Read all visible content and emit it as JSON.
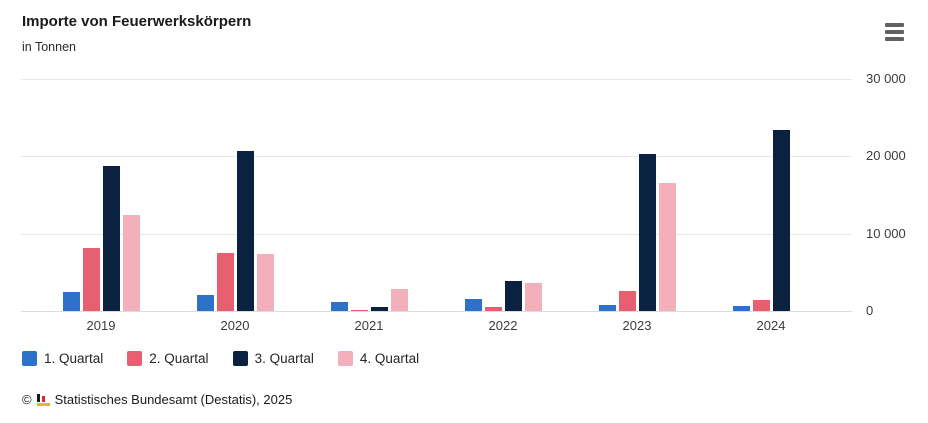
{
  "header": {
    "title": "Importe von Feuerwerkskörpern",
    "subtitle": "in Tonnen"
  },
  "menu": {
    "icon": "hamburger-menu-icon"
  },
  "chart_data": {
    "type": "bar",
    "title": "Importe von Feuerwerkskörpern",
    "ylabel": "Tonnen",
    "categories": [
      "2019",
      "2020",
      "2021",
      "2022",
      "2023",
      "2024"
    ],
    "series": [
      {
        "name": "1. Quartal",
        "color": "#2d72c8",
        "values": [
          2500,
          2100,
          1200,
          1500,
          800,
          600
        ]
      },
      {
        "name": "2. Quartal",
        "color": "#e6606f",
        "values": [
          8200,
          7500,
          150,
          550,
          2600,
          1400
        ]
      },
      {
        "name": "3. Quartal",
        "color": "#0a2240",
        "values": [
          18700,
          20700,
          500,
          3900,
          20300,
          23400
        ]
      },
      {
        "name": "4. Quartal",
        "color": "#f3b0bb",
        "values": [
          12400,
          7400,
          2900,
          3600,
          16500,
          null
        ]
      }
    ],
    "ylim": [
      0,
      30000
    ],
    "yticks": [
      {
        "value": 30000,
        "label": "30 000"
      },
      {
        "value": 20000,
        "label": "20 000"
      },
      {
        "value": 10000,
        "label": "10 000"
      },
      {
        "value": 0,
        "label": "0"
      }
    ],
    "grid": "horizontal",
    "legend_position": "bottom",
    "gridline_color": "#e8e8e8"
  },
  "footer": {
    "copyright": "©",
    "logo": "destatis-mini-bar-chart-logo",
    "text": "Statistisches Bundesamt (Destatis), 2025"
  }
}
